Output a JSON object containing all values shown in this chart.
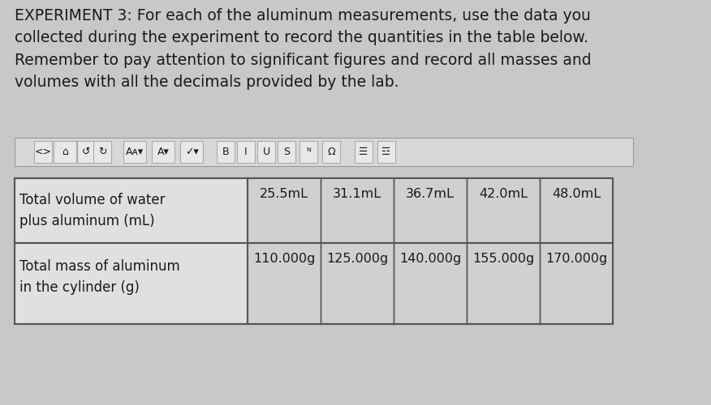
{
  "title_text": "EXPERIMENT 3: For each of the aluminum measurements, use the data you\ncollected during the experiment to record the quantities in the table below.\nRemember to pay attention to significant figures and record all masses and\nvolumes with all the decimals provided by the lab.",
  "background_color": "#b8b8b8",
  "page_bg": "#c8c8c8",
  "toolbar_bg": "#d8d8d8",
  "toolbar_border": "#999999",
  "btn_bg": "#e8e8e8",
  "btn_border": "#aaaaaa",
  "row1_label": "Total volume of water\nplus aluminum (mL)",
  "row2_label": "Total mass of aluminum\nin the cylinder (g)",
  "row1_values": [
    "25.5mL",
    "31.1mL",
    "36.7mL",
    "42.0mL",
    "48.0mL"
  ],
  "row2_values": [
    "110.000g",
    "125.000g",
    "140.000g",
    "155.000g",
    "170.000g"
  ],
  "table_border": "#555555",
  "cell_bg_light": "#e0e0e0",
  "cell_bg_data": "#d0d0d0",
  "text_color": "#1a1a1a",
  "title_fontsize": 13.5,
  "cell_fontsize": 11.5,
  "label_fontsize": 12,
  "toolbar_fontsize": 10
}
